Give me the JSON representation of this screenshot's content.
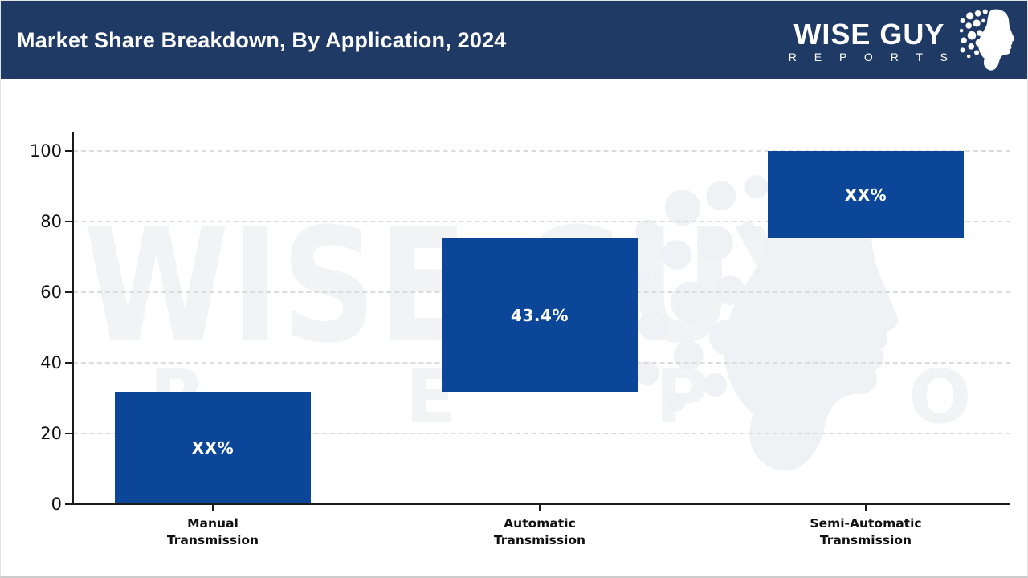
{
  "page": {
    "background": "#ffffff",
    "bottom_rule_color": "#cccccc"
  },
  "header": {
    "background": "#203a66",
    "title": "Market Share Breakdown, By Application, 2024",
    "logo": {
      "line1": "WISE GUY",
      "line2": "R E P O R T S",
      "icon": "dotted-head-profile",
      "color": "#ffffff"
    }
  },
  "watermark": {
    "line1": "WISE GUY",
    "line2": "R E P O R T S",
    "icon": "dotted-head-profile",
    "color": "#f2f3f5"
  },
  "chart_data": {
    "type": "bar",
    "subtype": "floating-segment-waterfall",
    "title": "Market Share Breakdown, By Application, 2024",
    "categories": [
      {
        "line1": "Manual",
        "line2": "Transmission"
      },
      {
        "line1": "Automatic",
        "line2": "Transmission"
      },
      {
        "line1": "Semi-Automatic",
        "line2": "Transmission"
      }
    ],
    "bars": [
      {
        "category": "Manual Transmission",
        "start": 0,
        "end": 31.8,
        "value_label": "XX%"
      },
      {
        "category": "Automatic Transmission",
        "start": 31.8,
        "end": 75.2,
        "value_label": "43.4%"
      },
      {
        "category": "Semi-Automatic Transmission",
        "start": 75.2,
        "end": 100,
        "value_label": "XX%"
      }
    ],
    "yticks": [
      0,
      20,
      40,
      60,
      80,
      100
    ],
    "ylim": [
      0,
      100
    ],
    "grid": "horizontal dashed",
    "legend": "none",
    "bar_color": "#0b4699",
    "bar_label_color": "#ffffff",
    "axis_color": "#1a1a1a",
    "gridline_color": "#dcdcdc"
  }
}
